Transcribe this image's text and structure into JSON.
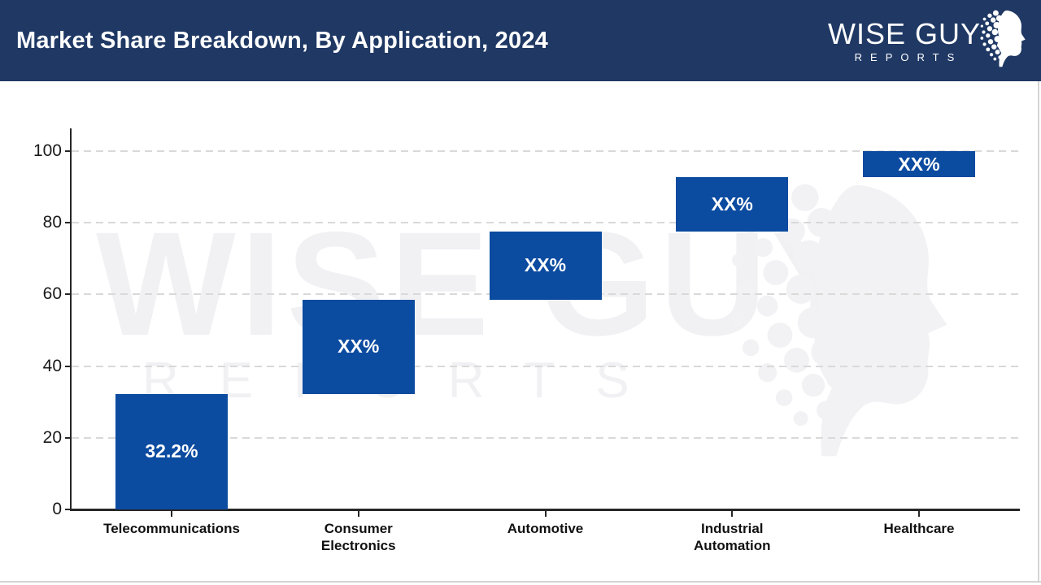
{
  "header": {
    "title": "Market Share Breakdown, By Application, 2024",
    "logo": {
      "wordmark": "WISE GUY",
      "subtext": "REPORTS"
    }
  },
  "watermark": {
    "wordmark": "WISE GUY",
    "subtext": "REPORTS"
  },
  "chart_data": {
    "type": "bar",
    "subtype": "waterfall",
    "title": "Market Share Breakdown, By Application, 2024",
    "unit": "percent",
    "categories": [
      "Telecommunications",
      "Consumer\nElectronics",
      "Automotive",
      "Industrial\nAutomation",
      "Healthcare"
    ],
    "segments": [
      {
        "category": "Telecommunications",
        "start": 0,
        "end": 32.2,
        "value": 32.2,
        "label": "32.2%"
      },
      {
        "category": "Consumer Electronics",
        "start": 32.2,
        "end": 58.5,
        "value": 26.3,
        "label": "XX%"
      },
      {
        "category": "Automotive",
        "start": 58.5,
        "end": 77.6,
        "value": 19.1,
        "label": "XX%"
      },
      {
        "category": "Industrial Automation",
        "start": 77.6,
        "end": 92.7,
        "value": 15.1,
        "label": "XX%"
      },
      {
        "category": "Healthcare",
        "start": 92.7,
        "end": 100,
        "value": 7.3,
        "label": "XX%"
      }
    ],
    "ylim": [
      0,
      100
    ],
    "yticks": [
      0,
      20,
      40,
      60,
      80,
      100
    ],
    "grid": true,
    "legend": false,
    "colors": {
      "bar": "#0b4ba0",
      "header_bg": "#1f3864",
      "gridline": "#d9d9d9",
      "axis": "#262626",
      "bar_label": "#ffffff",
      "watermark": "#f1f1f4"
    }
  }
}
